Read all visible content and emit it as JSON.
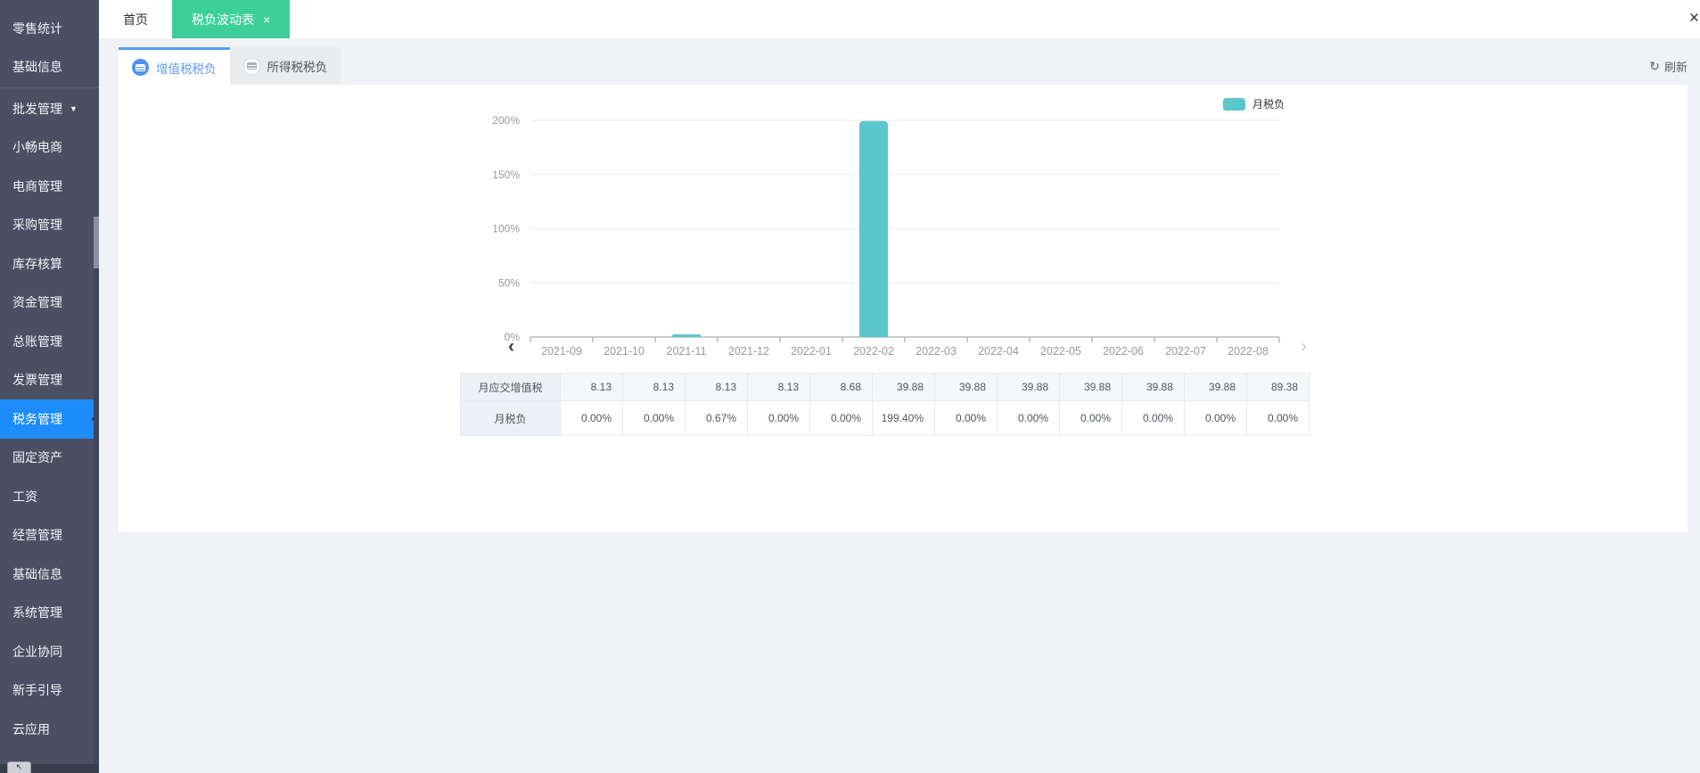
{
  "colors": {
    "primary_blue": "#1d8cfa",
    "tab_green": "#3dcf9b",
    "bar_teal": "#5bc7cd"
  },
  "sidebar": {
    "items": [
      {
        "label": "零售统计"
      },
      {
        "label": "基础信息"
      },
      {
        "label": "批发管理",
        "dropdown": true,
        "divider_before": true
      },
      {
        "label": "小畅电商"
      },
      {
        "label": "电商管理"
      },
      {
        "label": "采购管理"
      },
      {
        "label": "库存核算"
      },
      {
        "label": "资金管理"
      },
      {
        "label": "总账管理"
      },
      {
        "label": "发票管理"
      },
      {
        "label": "税务管理",
        "active": true
      },
      {
        "label": "固定资产"
      },
      {
        "label": "工资"
      },
      {
        "label": "经营管理"
      },
      {
        "label": "基础信息"
      },
      {
        "label": "系统管理"
      },
      {
        "label": "企业协同"
      },
      {
        "label": "新手引导"
      },
      {
        "label": "云应用"
      }
    ]
  },
  "window_tabs": {
    "home_label": "首页",
    "active_label": "税负波动表",
    "tab_close_label": "×",
    "bar_close_label": "×"
  },
  "content": {
    "tabs": [
      {
        "label": "增值税税负",
        "active": true
      },
      {
        "label": "所得税税负",
        "active": false
      }
    ],
    "refresh_label": "刷新",
    "refresh_icon": "↻",
    "prev_arrow": "‹",
    "next_arrow": "›"
  },
  "chart_data": {
    "type": "bar",
    "title": "",
    "categories": [
      "2021-09",
      "2021-10",
      "2021-11",
      "2021-12",
      "2022-01",
      "2022-02",
      "2022-03",
      "2022-04",
      "2022-05",
      "2022-06",
      "2022-07",
      "2022-08"
    ],
    "series": [
      {
        "name": "月税负",
        "values": [
          0,
          0,
          0.67,
          0,
          0,
          199.4,
          0,
          0,
          0,
          0,
          0,
          0
        ]
      }
    ],
    "ylim": [
      0,
      200
    ],
    "yticks": [
      0,
      50,
      100,
      150,
      200
    ],
    "ytick_suffix": "%",
    "grid": true,
    "legend_position": "top-right",
    "bar_color": "#5bc7cd"
  },
  "table": {
    "rows": [
      {
        "label": "月应交增值税",
        "values": [
          "8.13",
          "8.13",
          "8.13",
          "8.13",
          "8.68",
          "39.88",
          "39.88",
          "39.88",
          "39.88",
          "39.88",
          "39.88",
          "89.38"
        ]
      },
      {
        "label": "月税负",
        "values": [
          "0.00%",
          "0.00%",
          "0.67%",
          "0.00%",
          "0.00%",
          "199.40%",
          "0.00%",
          "0.00%",
          "0.00%",
          "0.00%",
          "0.00%",
          "0.00%"
        ]
      }
    ]
  }
}
